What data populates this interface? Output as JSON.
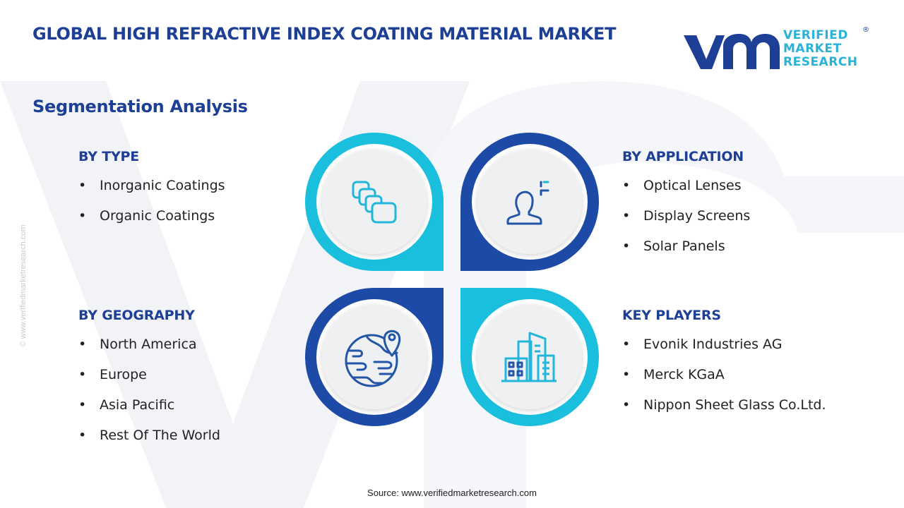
{
  "header": {
    "title": "GLOBAL HIGH REFRACTIVE INDEX COATING MATERIAL MARKET",
    "subtitle": "Segmentation Analysis"
  },
  "logo": {
    "line1": "VERIFIED",
    "line2": "MARKET",
    "line3": "RESEARCH",
    "registered": "®"
  },
  "side_url": "© www.verifiedmarketresearch.com",
  "colors": {
    "dark_blue": "#1d3f96",
    "cyan": "#19bfdc",
    "icon_blue": "#2355a8",
    "icon_cyan": "#22b6d8",
    "circle_fill": "#eef0f2",
    "watermark": "#f1f3f7"
  },
  "segments": {
    "by_type": {
      "heading": "BY TYPE",
      "items": [
        "Inorganic Coatings",
        "Organic Coatings"
      ],
      "icon": "stacked-layers-icon"
    },
    "by_application": {
      "heading": "BY APPLICATION",
      "items": [
        "Optical Lenses",
        "Display Screens",
        "Solar Panels"
      ],
      "icon": "user-target-icon"
    },
    "by_geography": {
      "heading": "BY GEOGRAPHY",
      "items": [
        "North America",
        "Europe",
        "Asia Pacific",
        "Rest Of The World"
      ],
      "icon": "globe-location-icon"
    },
    "key_players": {
      "heading": "KEY PLAYERS",
      "items": [
        "Evonik Industries AG",
        "Merck KGaA",
        "Nippon Sheet Glass Co.Ltd."
      ],
      "icon": "city-buildings-icon"
    }
  },
  "footer": {
    "source_label": "Source:",
    "source_url": "www.verifiedmarketresearch.com"
  }
}
